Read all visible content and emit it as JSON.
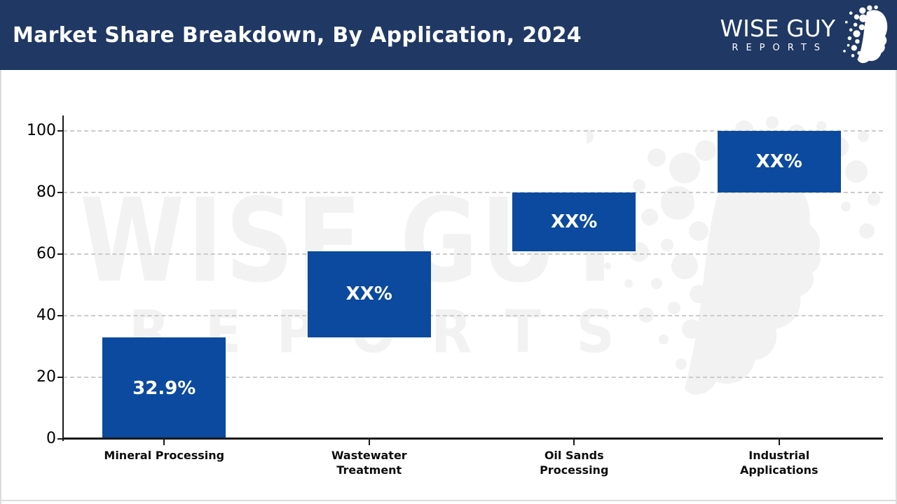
{
  "header": {
    "title": "Market Share Breakdown, By Application, 2024",
    "logo": {
      "line1": "WISE GUY",
      "line2": "REPORTS"
    }
  },
  "watermark": {
    "line1": "WISE GUY",
    "line2": "REPORTS"
  },
  "colors": {
    "header_bg": "#1f3864",
    "bar": "#0b4a9e",
    "bar_label": "#ffffff",
    "watermark": "#f2f2f3",
    "gridline": "#cbcbcb",
    "axis": "#1a1a1a",
    "page_border": "#dcdcdc"
  },
  "chart_data": {
    "type": "bar",
    "subtype": "waterfall",
    "title": "Market Share Breakdown, By Application, 2024",
    "xlabel": "",
    "ylabel": "",
    "ylim": [
      0,
      100
    ],
    "yticks": [
      0,
      20,
      40,
      60,
      80,
      100
    ],
    "grid": "dashed-horizontal",
    "legend": "none",
    "categories": [
      "Mineral Processing",
      "Wastewater Treatment",
      "Oil Sands Processing",
      "Industrial Applications"
    ],
    "segments": [
      {
        "category": "Mineral Processing",
        "display": "Mineral Processing",
        "start": 0,
        "end": 32.9,
        "label": "32.9%"
      },
      {
        "category": "Wastewater Treatment",
        "display": "Wastewater\nTreatment",
        "start": 32.9,
        "end": 61.0,
        "label": "XX%"
      },
      {
        "category": "Oil Sands Processing",
        "display": "Oil Sands\nProcessing",
        "start": 61.0,
        "end": 80.0,
        "label": "XX%"
      },
      {
        "category": "Industrial Applications",
        "display": "Industrial\nApplications",
        "start": 80.0,
        "end": 100.0,
        "label": "XX%"
      }
    ]
  }
}
